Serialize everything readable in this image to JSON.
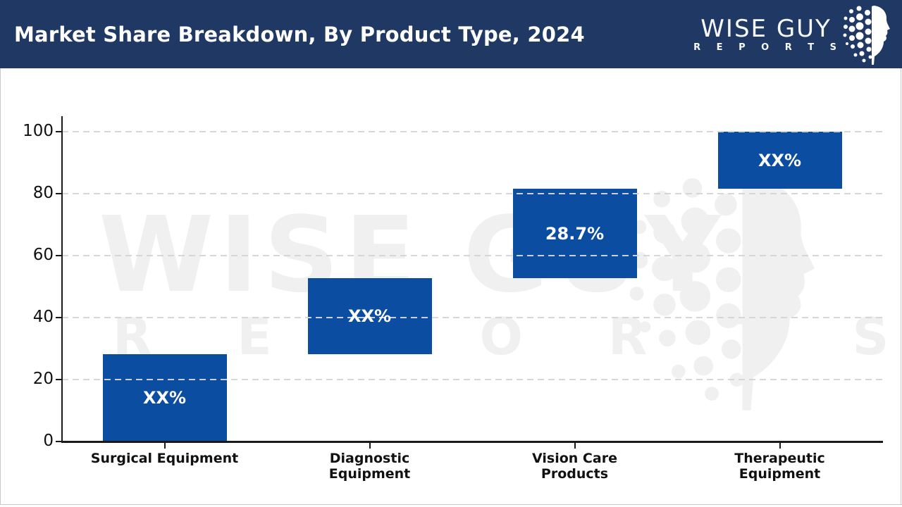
{
  "header": {
    "title": "Market Share Breakdown, By Product Type, 2024",
    "bg_color": "#1f3864",
    "logo": {
      "wordmark": "WISE GUY",
      "subtext": "R E P O R T S"
    }
  },
  "watermark": {
    "line1": "WISE GUY",
    "line2": "R E P O R T S",
    "color": "#f0f0f0"
  },
  "chart_data": {
    "type": "bar",
    "subtype": "floating-waterfall",
    "title": "Market Share Breakdown, By Product Type, 2024",
    "categories": [
      "Surgical Equipment",
      "Diagnostic Equipment",
      "Vision Care Products",
      "Therapeutic Equipment"
    ],
    "category_label_lines": [
      [
        "Surgical Equipment"
      ],
      [
        "Diagnostic",
        "Equipment"
      ],
      [
        "Vision Care",
        "Products"
      ],
      [
        "Therapeutic",
        "Equipment"
      ]
    ],
    "segments": [
      {
        "category": "Surgical Equipment",
        "start": 0,
        "end": 28.2,
        "height": 28.2,
        "label": "XX%"
      },
      {
        "category": "Diagnostic Equipment",
        "start": 28.2,
        "end": 52.8,
        "height": 24.6,
        "label": "XX%"
      },
      {
        "category": "Vision Care Products",
        "start": 52.8,
        "end": 81.5,
        "height": 28.7,
        "label": "28.7%"
      },
      {
        "category": "Therapeutic Equipment",
        "start": 81.5,
        "end": 100,
        "height": 18.5,
        "label": "XX%"
      }
    ],
    "yticks": [
      0,
      20,
      40,
      60,
      80,
      100
    ],
    "ytick_labels": [
      "0",
      "20",
      "40",
      "60",
      "80",
      "100"
    ],
    "ylim": [
      0,
      105
    ],
    "xlabel": "",
    "ylabel": "",
    "legend": "none",
    "grid": "horizontal dashed lines drawn over bars",
    "bar_color": "#0b4da1",
    "bar_label_color": "#ffffff",
    "axis_color": "#1a1a1a",
    "grid_color": "#d5d5d5"
  }
}
